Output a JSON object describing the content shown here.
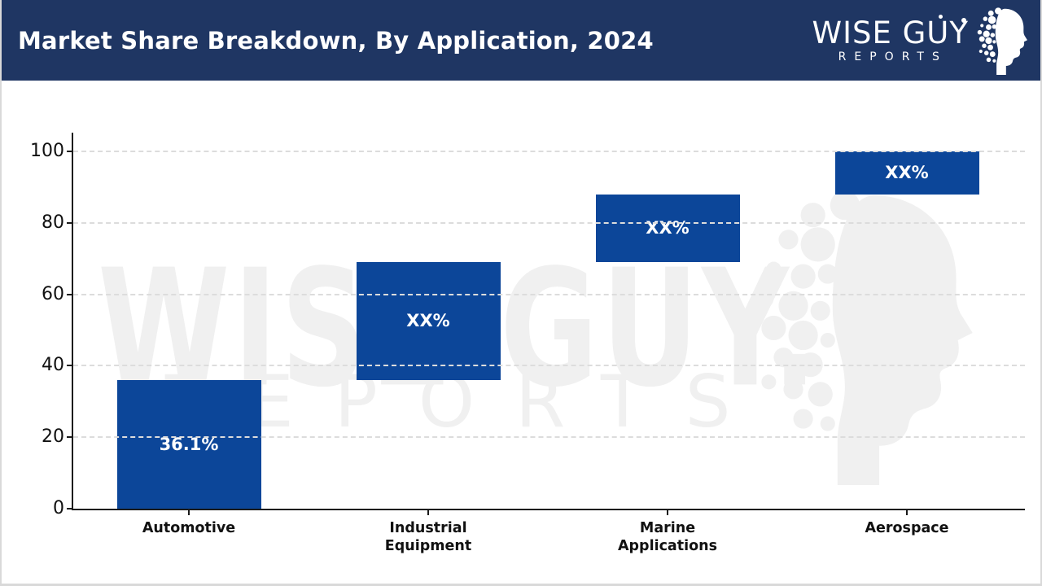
{
  "header": {
    "title": "Market Share Breakdown, By Application, 2024",
    "bg_color": "#1f3663",
    "logo": {
      "line1": "WISE GUY",
      "line2": "REPORTS"
    }
  },
  "watermark": {
    "line1": "WISE GUY.",
    "line2": "REPORTS"
  },
  "chart_data": {
    "type": "bar",
    "subtype": "waterfall-stacked-segments",
    "title": "Market Share Breakdown, By Application, 2024",
    "categories": [
      "Automotive",
      "Industrial\nEquipment",
      "Marine\nApplications",
      "Aerospace"
    ],
    "segments": [
      {
        "category": "Automotive",
        "start": 0,
        "end": 36.1,
        "value_label": "36.1%"
      },
      {
        "category": "Industrial Equipment",
        "start": 36.1,
        "end": 69,
        "value_label": "XX%"
      },
      {
        "category": "Marine Applications",
        "start": 69,
        "end": 88,
        "value_label": "XX%"
      },
      {
        "category": "Aerospace",
        "start": 88,
        "end": 100,
        "value_label": "XX%"
      }
    ],
    "yticks": [
      0,
      20,
      40,
      60,
      80,
      100
    ],
    "ylim": [
      0,
      105
    ],
    "xlabel": "",
    "ylabel": "",
    "grid": "horizontal-dashed",
    "legend": "none",
    "bar_color": "#0c4699",
    "grid_color": "#dcdcdc",
    "axis_color": "#1a1a1a",
    "watermark_color": "#f0f0f0"
  }
}
